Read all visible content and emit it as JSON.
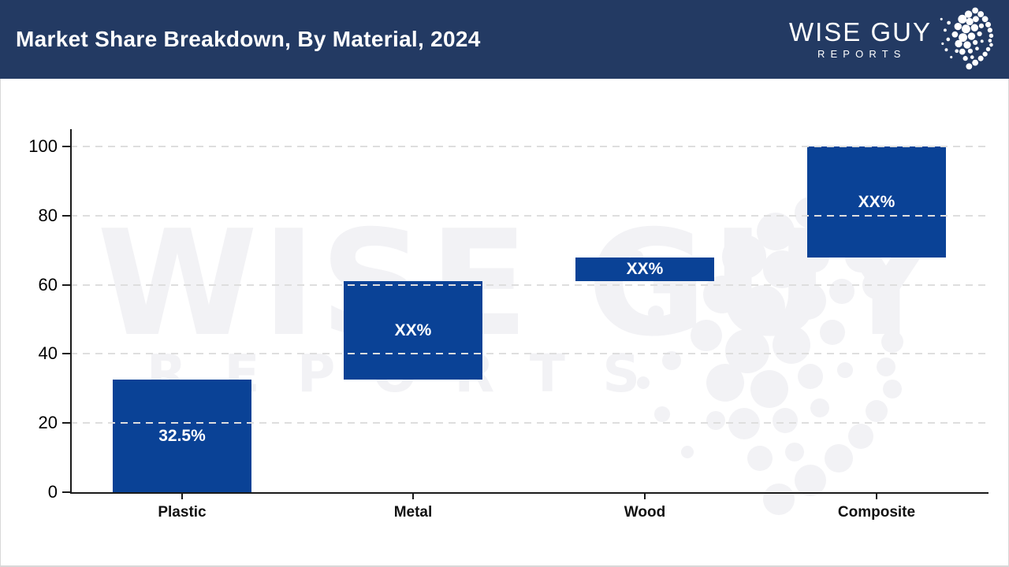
{
  "header": {
    "title": "Market Share Breakdown, By Material, 2024",
    "logo": {
      "line1": "WISE GUY",
      "line2": "REPORTS"
    }
  },
  "watermark": {
    "line1": "WISE GUY",
    "line2": "REPORTS"
  },
  "chart_data": {
    "type": "bar",
    "subtype": "waterfall",
    "title": "Market Share Breakdown, By Material, 2024",
    "categories": [
      "Plastic",
      "Metal",
      "Wood",
      "Composite"
    ],
    "segments": [
      {
        "category": "Plastic",
        "start": 0,
        "end": 32.5,
        "label": "32.5%"
      },
      {
        "category": "Metal",
        "start": 32.5,
        "end": 61,
        "label": "XX%"
      },
      {
        "category": "Wood",
        "start": 61,
        "end": 68,
        "label": "XX%"
      },
      {
        "category": "Composite",
        "start": 68,
        "end": 100,
        "label": "XX%"
      }
    ],
    "xlabel": "",
    "ylabel": "",
    "ylim": [
      0,
      105
    ],
    "y_ticks": [
      0,
      20,
      40,
      60,
      80,
      100
    ],
    "grid": "horizontal-dashed",
    "legend": "none"
  },
  "colors": {
    "header_bg": "#233a63",
    "bar": "#0a4296",
    "bar_label": "#ffffff",
    "grid": "#dedede",
    "axis": "#1a1a1a",
    "watermark": "#f2f2f5",
    "border": "#d8d8d8"
  }
}
